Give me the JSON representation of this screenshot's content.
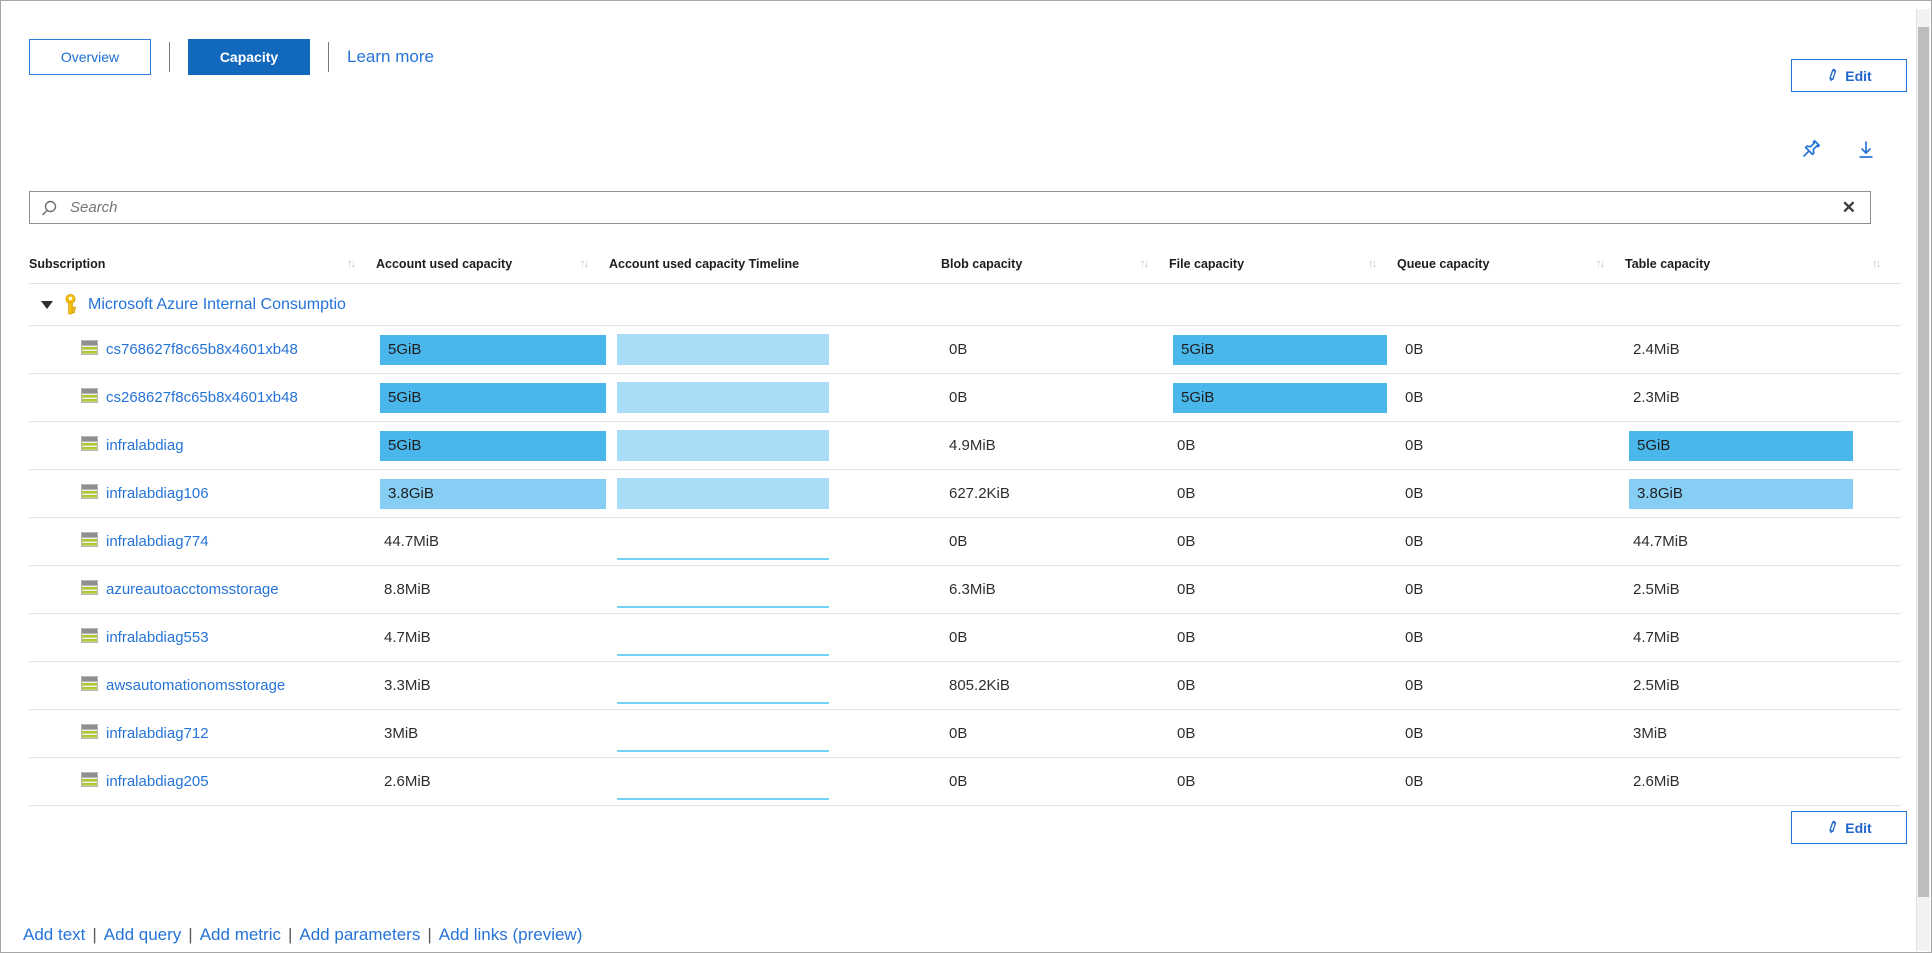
{
  "colors": {
    "accent": "#2673d8",
    "accent_fill": "#1168bd",
    "bar_strong": "#4ab7ec",
    "bar_light": "#86cef4",
    "timeline_block": "#a9dcf7",
    "timeline_line": "#72d3f5"
  },
  "tabs": {
    "overview_label": "Overview",
    "capacity_label": "Capacity",
    "learn_more_label": "Learn more"
  },
  "toolbar": {
    "edit_label": "Edit"
  },
  "icons": {
    "sort_glyph": "↑↓",
    "clear_glyph": "✕",
    "pin": "pin-icon",
    "download": "download-icon",
    "search": "search-icon",
    "edit": "edit-pencil-icon",
    "subscription_key": "key-icon",
    "storage_account": "storage-account-icon"
  },
  "search": {
    "placeholder": "Search"
  },
  "table": {
    "columns": [
      {
        "label": "Subscription",
        "sortable": true
      },
      {
        "label": "Account used capacity",
        "sortable": true
      },
      {
        "label": "Account used capacity Timeline",
        "sortable": false
      },
      {
        "label": "Blob capacity",
        "sortable": true
      },
      {
        "label": "File capacity",
        "sortable": true
      },
      {
        "label": "Queue capacity",
        "sortable": true
      },
      {
        "label": "Table capacity",
        "sortable": true
      }
    ],
    "group": {
      "label": "Microsoft Azure Internal Consumptio",
      "expanded": true
    },
    "rows": [
      {
        "name": "cs768627f8c65b8x4601xb48",
        "account_used": {
          "text": "5GiB",
          "bar": "strong"
        },
        "timeline": "block",
        "blob": "0B",
        "file": {
          "text": "5GiB",
          "bar": "strong"
        },
        "queue": "0B",
        "table": {
          "text": "2.4MiB",
          "bar": null
        }
      },
      {
        "name": "cs268627f8c65b8x4601xb48",
        "account_used": {
          "text": "5GiB",
          "bar": "strong"
        },
        "timeline": "block",
        "blob": "0B",
        "file": {
          "text": "5GiB",
          "bar": "strong"
        },
        "queue": "0B",
        "table": {
          "text": "2.3MiB",
          "bar": null
        }
      },
      {
        "name": "infralabdiag",
        "account_used": {
          "text": "5GiB",
          "bar": "strong"
        },
        "timeline": "block",
        "blob": "4.9MiB",
        "file": {
          "text": "0B",
          "bar": null
        },
        "queue": "0B",
        "table": {
          "text": "5GiB",
          "bar": "strong"
        }
      },
      {
        "name": "infralabdiag106",
        "account_used": {
          "text": "3.8GiB",
          "bar": "light"
        },
        "timeline": "block",
        "blob": "627.2KiB",
        "file": {
          "text": "0B",
          "bar": null
        },
        "queue": "0B",
        "table": {
          "text": "3.8GiB",
          "bar": "light"
        }
      },
      {
        "name": "infralabdiag774",
        "account_used": {
          "text": "44.7MiB",
          "bar": null
        },
        "timeline": "line",
        "blob": "0B",
        "file": {
          "text": "0B",
          "bar": null
        },
        "queue": "0B",
        "table": {
          "text": "44.7MiB",
          "bar": null
        }
      },
      {
        "name": "azureautoacctomsstorage",
        "account_used": {
          "text": "8.8MiB",
          "bar": null
        },
        "timeline": "line",
        "blob": "6.3MiB",
        "file": {
          "text": "0B",
          "bar": null
        },
        "queue": "0B",
        "table": {
          "text": "2.5MiB",
          "bar": null
        }
      },
      {
        "name": "infralabdiag553",
        "account_used": {
          "text": "4.7MiB",
          "bar": null
        },
        "timeline": "line",
        "blob": "0B",
        "file": {
          "text": "0B",
          "bar": null
        },
        "queue": "0B",
        "table": {
          "text": "4.7MiB",
          "bar": null
        }
      },
      {
        "name": "awsautomationomsstorage",
        "account_used": {
          "text": "3.3MiB",
          "bar": null
        },
        "timeline": "line",
        "blob": "805.2KiB",
        "file": {
          "text": "0B",
          "bar": null
        },
        "queue": "0B",
        "table": {
          "text": "2.5MiB",
          "bar": null
        }
      },
      {
        "name": "infralabdiag712",
        "account_used": {
          "text": "3MiB",
          "bar": null
        },
        "timeline": "line",
        "blob": "0B",
        "file": {
          "text": "0B",
          "bar": null
        },
        "queue": "0B",
        "table": {
          "text": "3MiB",
          "bar": null
        }
      },
      {
        "name": "infralabdiag205",
        "account_used": {
          "text": "2.6MiB",
          "bar": null
        },
        "timeline": "line",
        "blob": "0B",
        "file": {
          "text": "0B",
          "bar": null
        },
        "queue": "0B",
        "table": {
          "text": "2.6MiB",
          "bar": null
        }
      }
    ]
  },
  "footer": {
    "links": [
      "Add text",
      "Add query",
      "Add metric",
      "Add parameters",
      "Add links (preview)"
    ]
  }
}
